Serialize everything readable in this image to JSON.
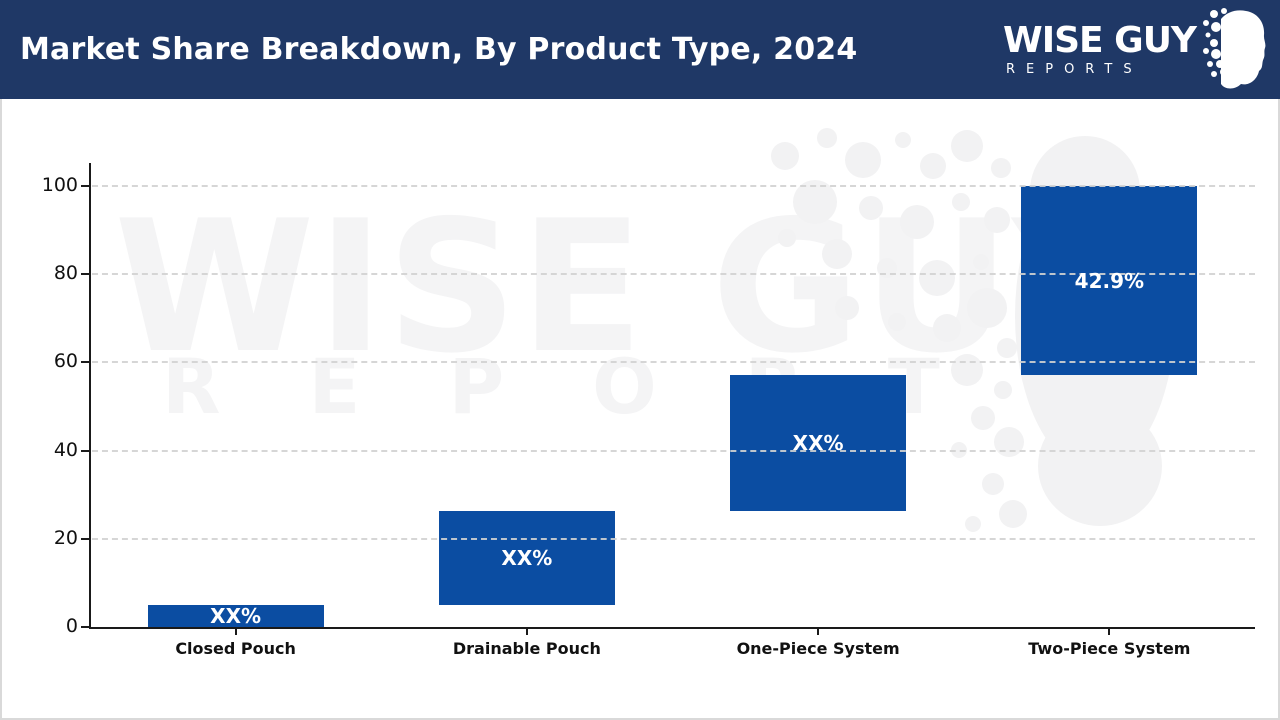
{
  "header": {
    "title": "Market Share Breakdown, By Product Type, 2024",
    "bg_color": "#1f3866",
    "logo": {
      "name": "WISE GUY",
      "sub": "REPORTS"
    }
  },
  "watermark": {
    "name": "WISE GUY",
    "sub": "REPORTS"
  },
  "chart_data": {
    "type": "bar",
    "subtype": "waterfall-stacked",
    "title": "Market Share Breakdown, By Product Type, 2024",
    "categories": [
      "Closed Pouch",
      "Drainable Pouch",
      "One-Piece System",
      "Two-Piece System"
    ],
    "segments": [
      {
        "category": "Closed Pouch",
        "start": 0,
        "end": 5.0,
        "value_label": "XX%"
      },
      {
        "category": "Drainable Pouch",
        "start": 5.0,
        "end": 26.2,
        "value_label": "XX%"
      },
      {
        "category": "One-Piece System",
        "start": 26.2,
        "end": 57.1,
        "value_label": "XX%"
      },
      {
        "category": "Two-Piece System",
        "start": 57.1,
        "end": 100,
        "value_label": "42.9%"
      }
    ],
    "values": [
      5.0,
      21.2,
      30.9,
      42.9
    ],
    "xlabel": "",
    "ylabel": "",
    "yticks": [
      0,
      20,
      40,
      60,
      80,
      100
    ],
    "ylim": [
      0,
      105
    ],
    "grid": "horizontal-dashed",
    "legend": "none",
    "colors": {
      "bar": "#0b4da2",
      "bar_label": "#ffffff",
      "grid": "#d2d2d2",
      "axis": "#1a1a1a",
      "tick_label": "#111111",
      "category_label": "#111111"
    }
  }
}
